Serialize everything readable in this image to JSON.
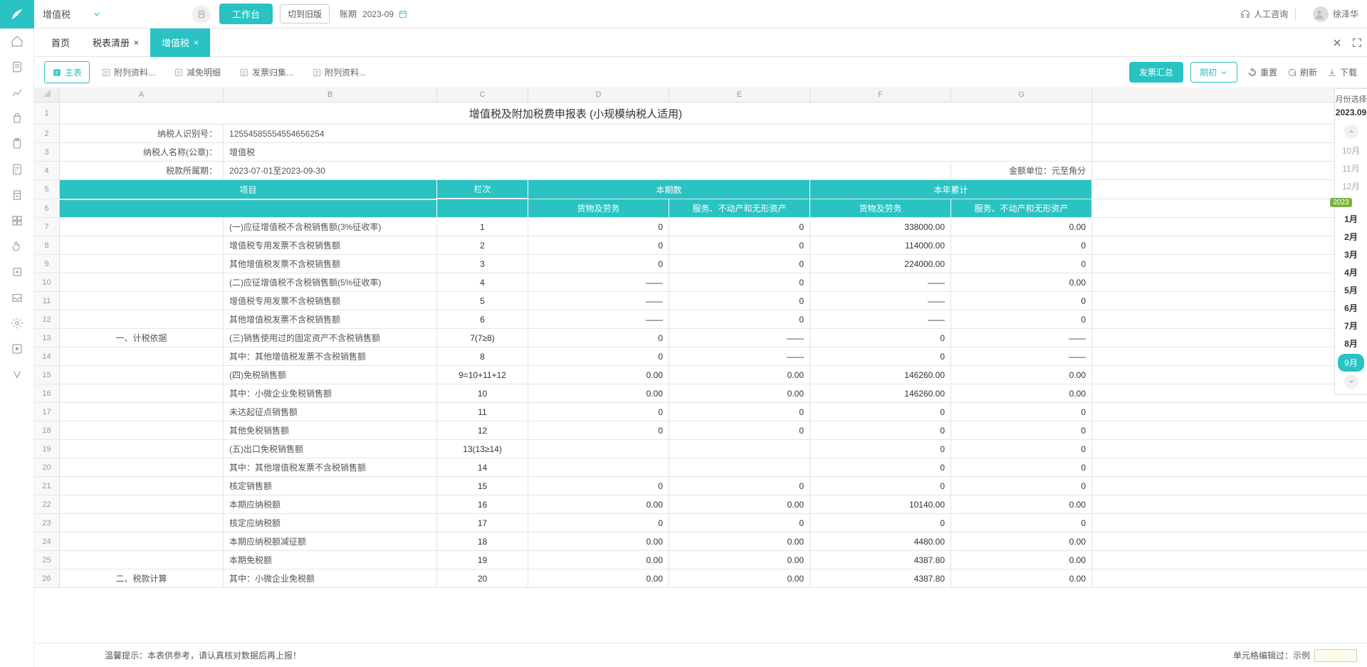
{
  "topbar": {
    "company": "增值税",
    "workspace_btn": "工作台",
    "switch_old": "切到旧版",
    "period_label": "账期",
    "period": "2023-09",
    "consult": "人工咨询",
    "user": "徐泽华"
  },
  "tabs": [
    {
      "label": "首页",
      "closable": false,
      "active": false
    },
    {
      "label": "税表清册",
      "closable": true,
      "active": false
    },
    {
      "label": "增值税",
      "closable": true,
      "active": true
    }
  ],
  "subtabs": [
    {
      "label": "主表",
      "active": true
    },
    {
      "label": "附列资料...",
      "active": false
    },
    {
      "label": "减免明细",
      "active": false
    },
    {
      "label": "发票归集...",
      "active": false
    },
    {
      "label": "附列资料...",
      "active": false
    }
  ],
  "actions": {
    "summary": "发票汇总",
    "period_init": "期初",
    "reset": "重置",
    "refresh": "刷新",
    "download": "下载"
  },
  "columns": [
    "A",
    "B",
    "C",
    "D",
    "E",
    "F",
    "G"
  ],
  "title": "增值税及附加税费申报表 (小规模纳税人适用)",
  "meta": {
    "taxpayer_id_label": "纳税人识别号：",
    "taxpayer_id": "12554585554554656254",
    "taxpayer_name_label": "纳税人名称(公章)：",
    "taxpayer_name": "增值税",
    "tax_period_label": "税款所属期：",
    "tax_period": "2023-07-01至2023-09-30",
    "unit": "金额单位：元至角分"
  },
  "headers": {
    "item": "项目",
    "col": "栏次",
    "current": "本期数",
    "year": "本年累计",
    "goods": "货物及劳务",
    "services": "服务、不动产和无形资产"
  },
  "section1": "一、计税依据",
  "section2": "二、税款计算",
  "rows": [
    {
      "n": 7,
      "item": "(一)应征增值税不含税销售额(3%征收率)",
      "col": "1",
      "d": "0",
      "e": "0",
      "f": "338000.00",
      "g": "0.00"
    },
    {
      "n": 8,
      "item": "增值税专用发票不含税销售额",
      "col": "2",
      "d": "0",
      "e": "0",
      "f": "114000.00",
      "g": "0"
    },
    {
      "n": 9,
      "item": "其他增值税发票不含税销售额",
      "col": "3",
      "d": "0",
      "e": "0",
      "f": "224000.00",
      "g": "0"
    },
    {
      "n": 10,
      "item": "(二)应征增值税不含税销售额(5%征收率)",
      "col": "4",
      "d": "——",
      "e": "0",
      "f": "——",
      "g": "0.00"
    },
    {
      "n": 11,
      "item": "增值税专用发票不含税销售额",
      "col": "5",
      "d": "——",
      "e": "0",
      "f": "——",
      "g": "0"
    },
    {
      "n": 12,
      "item": "其他增值税发票不含税销售额",
      "col": "6",
      "d": "——",
      "e": "0",
      "f": "——",
      "g": "0"
    },
    {
      "n": 13,
      "item": "(三)销售使用过的固定资产不含税销售额",
      "col": "7(7≥8)",
      "d": "0",
      "e": "——",
      "f": "0",
      "g": "——"
    },
    {
      "n": 14,
      "item": "其中：其他增值税发票不含税销售额",
      "col": "8",
      "d": "0",
      "e": "——",
      "f": "0",
      "g": "——"
    },
    {
      "n": 15,
      "item": "(四)免税销售额",
      "col": "9=10+11+12",
      "d": "0.00",
      "e": "0.00",
      "f": "146260.00",
      "g": "0.00"
    },
    {
      "n": 16,
      "item": "其中：小微企业免税销售额",
      "col": "10",
      "d": "0.00",
      "e": "0.00",
      "f": "146260.00",
      "g": "0.00"
    },
    {
      "n": 17,
      "item": "未达起征点销售额",
      "col": "11",
      "d": "0",
      "e": "0",
      "f": "0",
      "g": "0"
    },
    {
      "n": 18,
      "item": "其他免税销售额",
      "col": "12",
      "d": "0",
      "e": "0",
      "f": "0",
      "g": "0"
    },
    {
      "n": 19,
      "item": "(五)出口免税销售额",
      "col": "13(13≥14)",
      "d": "",
      "e": "",
      "f": "0",
      "g": "0"
    },
    {
      "n": 20,
      "item": "其中：其他增值税发票不含税销售额",
      "col": "14",
      "d": "",
      "e": "",
      "f": "0",
      "g": "0"
    },
    {
      "n": 21,
      "item": "核定销售额",
      "col": "15",
      "d": "0",
      "e": "0",
      "f": "0",
      "g": "0"
    },
    {
      "n": 22,
      "item": "本期应纳税额",
      "col": "16",
      "d": "0.00",
      "e": "0.00",
      "f": "10140.00",
      "g": "0.00"
    },
    {
      "n": 23,
      "item": "核定应纳税额",
      "col": "17",
      "d": "0",
      "e": "0",
      "f": "0",
      "g": "0"
    },
    {
      "n": 24,
      "item": "本期应纳税额减征额",
      "col": "18",
      "d": "0.00",
      "e": "0.00",
      "f": "4480.00",
      "g": "0.00"
    },
    {
      "n": 25,
      "item": "本期免税额",
      "col": "19",
      "d": "0.00",
      "e": "0.00",
      "f": "4387.80",
      "g": "0.00"
    },
    {
      "n": 26,
      "item": "其中：小微企业免税额",
      "col": "20",
      "d": "0.00",
      "e": "0.00",
      "f": "4387.80",
      "g": "0.00"
    }
  ],
  "footer": {
    "warning": "温馨提示：本表供参考，请认真核对数据后再上报！",
    "edit_label": "单元格编辑过：",
    "example": "示例"
  },
  "month_panel": {
    "header": "月份选择",
    "year": "2023.09",
    "badge": "2023",
    "months": [
      {
        "label": "10月",
        "state": "dim"
      },
      {
        "label": "11月",
        "state": "dim"
      },
      {
        "label": "12月",
        "state": "dim"
      },
      {
        "label": "1月",
        "state": "on"
      },
      {
        "label": "2月",
        "state": "on"
      },
      {
        "label": "3月",
        "state": "on"
      },
      {
        "label": "4月",
        "state": "on"
      },
      {
        "label": "5月",
        "state": "on"
      },
      {
        "label": "6月",
        "state": "on"
      },
      {
        "label": "7月",
        "state": "on"
      },
      {
        "label": "8月",
        "state": "on"
      },
      {
        "label": "9月",
        "state": "active"
      }
    ]
  }
}
